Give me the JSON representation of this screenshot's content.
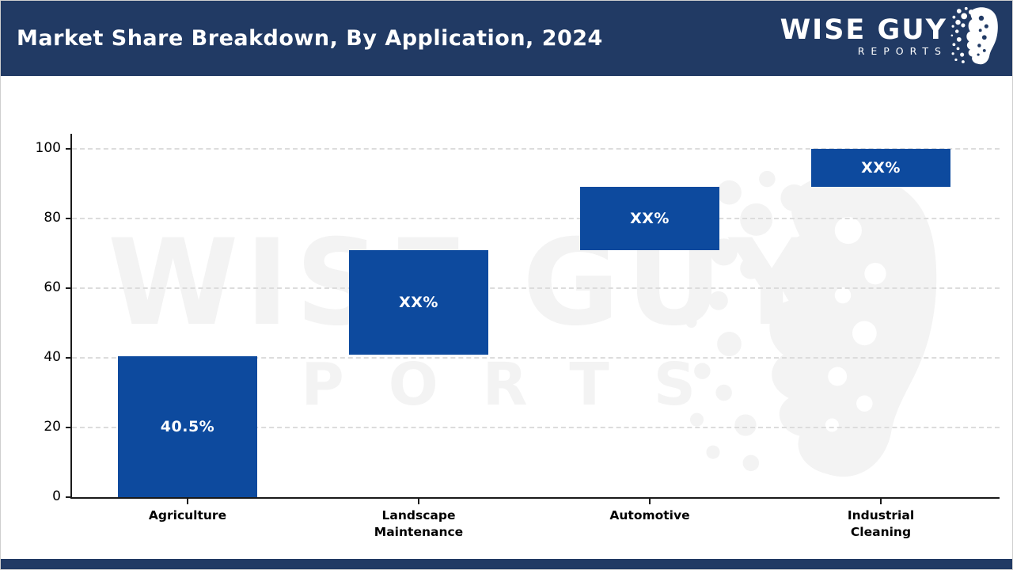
{
  "header": {
    "title": "Market Share Breakdown, By Application, 2024",
    "bg_color": "#213a64",
    "logo": {
      "line1": "WISE GUY",
      "line2": "REPORTS"
    }
  },
  "watermark": {
    "line1": "WISE GUY",
    "line2": "REPORTS",
    "color": "#f3f3f3"
  },
  "chart_data": {
    "type": "bar",
    "subtype": "waterfall",
    "title": "Market Share Breakdown, By Application, 2024",
    "categories": [
      {
        "lines": [
          "Agriculture"
        ]
      },
      {
        "lines": [
          "Landscape",
          "Maintenance"
        ]
      },
      {
        "lines": [
          "Automotive"
        ]
      },
      {
        "lines": [
          "Industrial",
          "Cleaning"
        ]
      }
    ],
    "bars": [
      {
        "name": "Agriculture",
        "base": 0,
        "top": 40.5,
        "value_label": "40.5%"
      },
      {
        "name": "Landscape Maintenance",
        "base": 41,
        "top": 71,
        "value_label": "XX%"
      },
      {
        "name": "Automotive",
        "base": 71,
        "top": 89,
        "value_label": "XX%"
      },
      {
        "name": "Industrial Cleaning",
        "base": 89,
        "top": 100,
        "value_label": "XX%"
      }
    ],
    "ylim": [
      0,
      100
    ],
    "yticks": [
      0,
      20,
      40,
      60,
      80,
      100
    ],
    "xlabel": "",
    "ylabel": "",
    "grid": "horizontal-dashed",
    "legend": "none",
    "bar_color": "#0d4a9e",
    "grid_color": "#dcdcdc",
    "axis_color": "#1a1a1a"
  }
}
